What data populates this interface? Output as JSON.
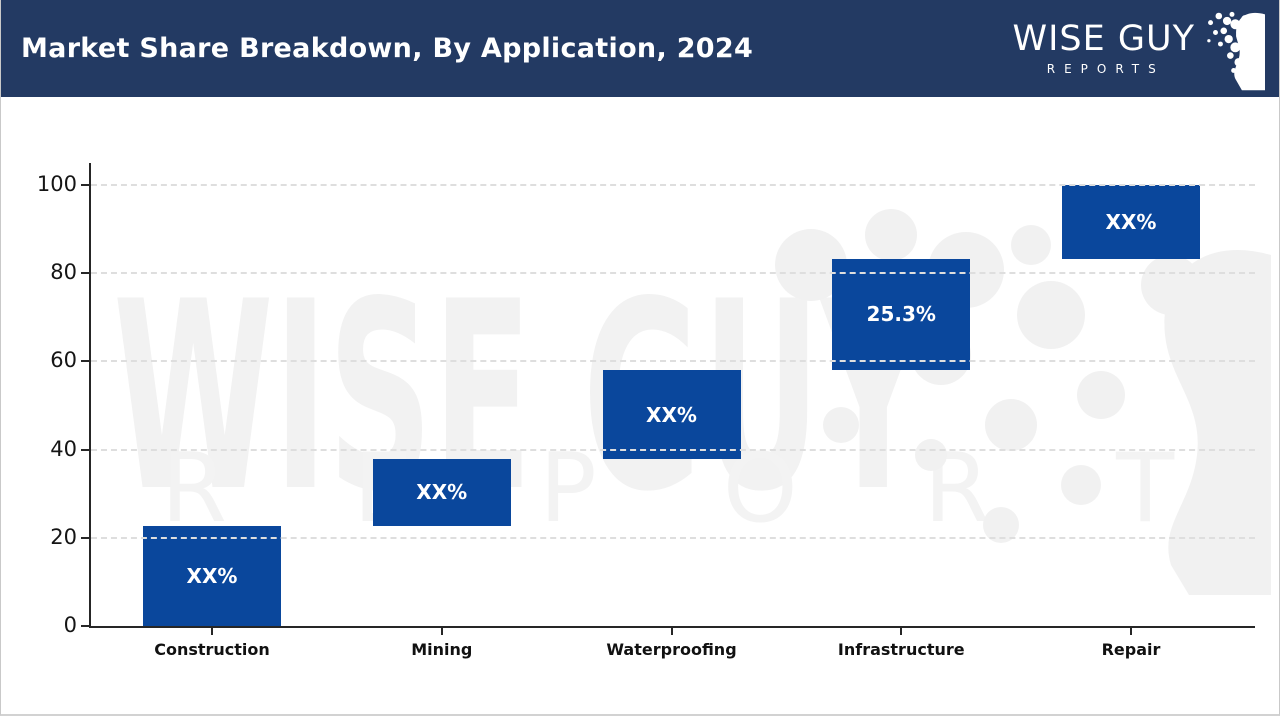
{
  "header": {
    "title": "Market Share Breakdown, By Application, 2024",
    "logo": {
      "line1": "WISE GUY",
      "line2": "REPORTS"
    }
  },
  "watermark": {
    "line1": "WISE GUY",
    "line2": "R E P O R T S"
  },
  "colors": {
    "header_bg": "#233a63",
    "bar_blue": "#0a479c",
    "grid_gray": "#dedede",
    "axis_dark": "#262626",
    "watermark_gray": "#f2f2f2"
  },
  "chart_data": {
    "type": "bar",
    "subtype": "waterfall",
    "title": "Market Share Breakdown, By Application, 2024",
    "categories": [
      "Construction",
      "Mining",
      "Waterproofing",
      "Infrastructure",
      "Repair"
    ],
    "bars": [
      {
        "category": "Construction",
        "start": 0,
        "end": 22.7,
        "label": "XX%"
      },
      {
        "category": "Mining",
        "start": 22.7,
        "end": 37.9,
        "label": "XX%"
      },
      {
        "category": "Waterproofing",
        "start": 37.9,
        "end": 58.0,
        "label": "XX%"
      },
      {
        "category": "Infrastructure",
        "start": 58.0,
        "end": 83.3,
        "label": "25.3%"
      },
      {
        "category": "Repair",
        "start": 83.3,
        "end": 100,
        "label": "XX%"
      }
    ],
    "yticks": [
      0,
      20,
      40,
      60,
      80,
      100
    ],
    "ylim": [
      0,
      105
    ],
    "xlabel": "",
    "ylabel": "",
    "grid": "horizontal dashed",
    "legend": "none",
    "bar_color": "#0a479c",
    "value_label_color": "#ffffff"
  }
}
